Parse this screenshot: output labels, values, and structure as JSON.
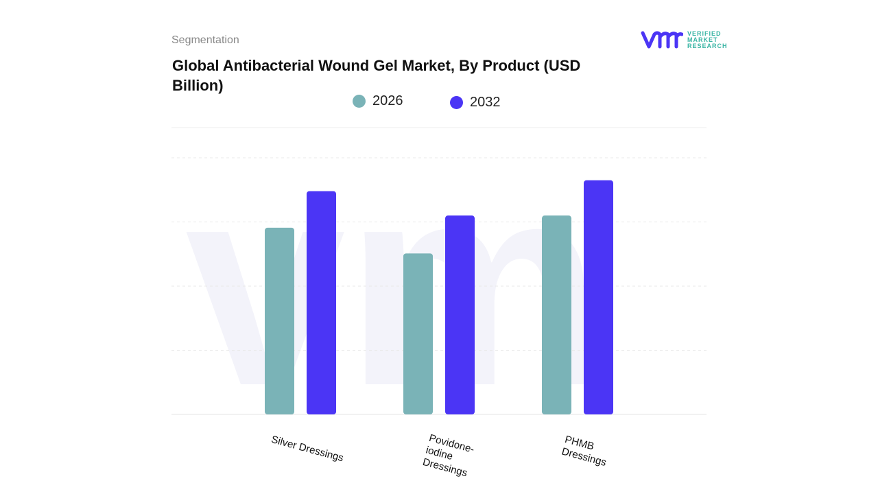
{
  "header": {
    "section": "Segmentation",
    "title": "Global Antibacterial Wound Gel Market, By Product (USD Billion)"
  },
  "logo": {
    "text": [
      "VERIFIED",
      "MARKET",
      "RESEARCH"
    ],
    "mark": "vmr"
  },
  "colors": {
    "2026": "#7ab3b7",
    "2032": "#4b35f5"
  },
  "chart_data": {
    "type": "bar",
    "title": "Global Antibacterial Wound Gel Market, By Product (USD Billion)",
    "categories": [
      "Silver Dressings",
      "Povidone-iodine Dressings",
      "PHMB Dressings"
    ],
    "series": [
      {
        "name": "2026",
        "values": [
          2.91,
          2.51,
          3.1
        ]
      },
      {
        "name": "2032",
        "values": [
          3.48,
          3.1,
          3.65
        ]
      }
    ],
    "ylim": [
      0,
      4.5
    ],
    "grid": true,
    "legend": "top-center",
    "xlabel": "",
    "ylabel": ""
  }
}
